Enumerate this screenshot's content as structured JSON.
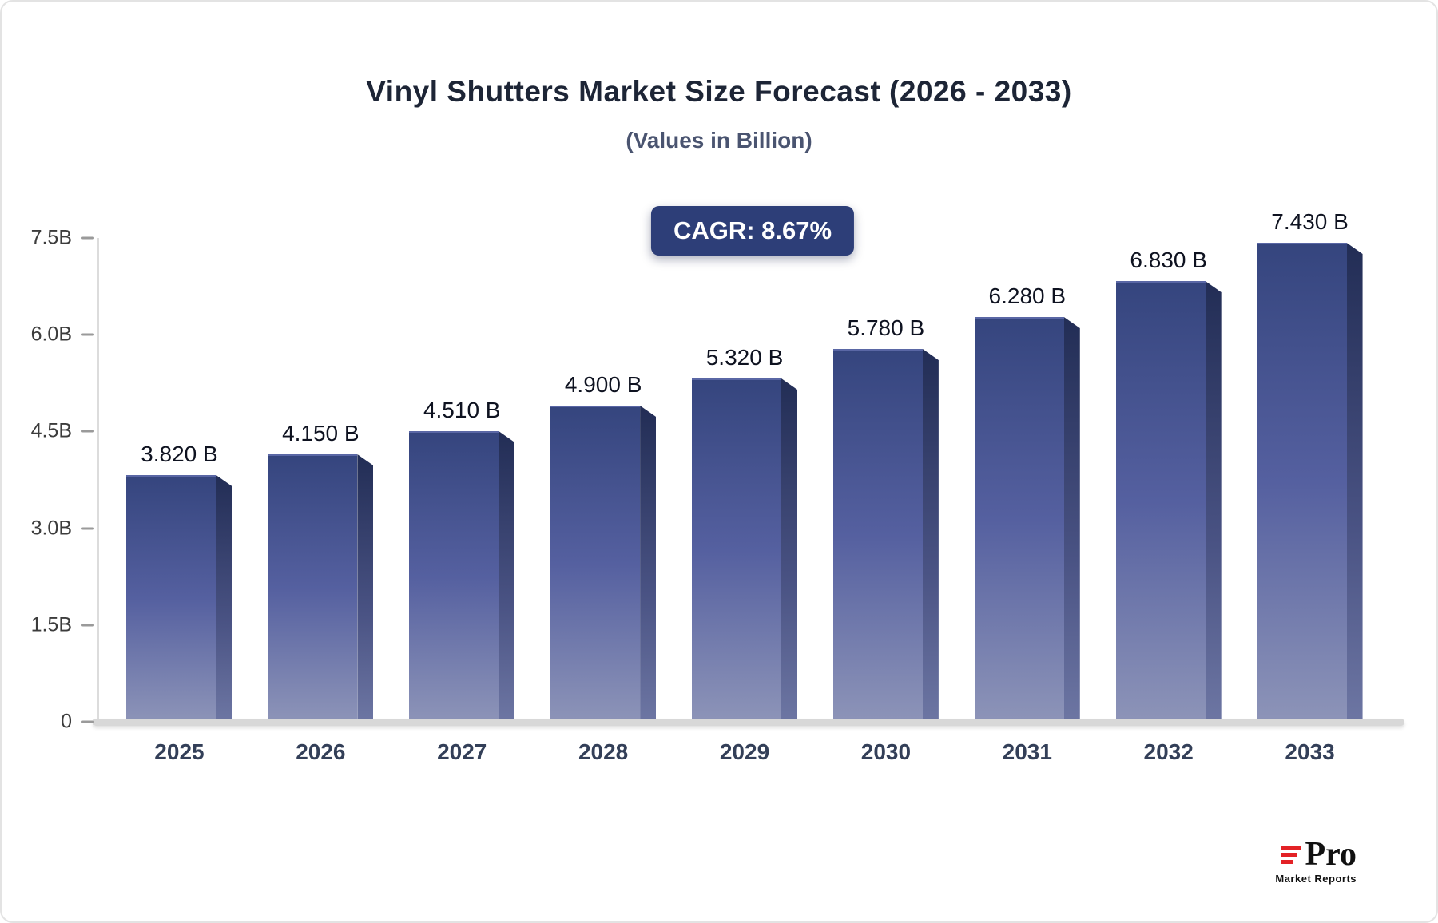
{
  "page": {
    "title": "Vinyl Shutters Market Size Forecast (2026 - 2033)",
    "subtitle": "(Values in Billion)",
    "cagr_badge": "CAGR: 8.67%"
  },
  "chart_data": {
    "type": "bar",
    "title": "Vinyl Shutters Market Size Forecast (2026 - 2033)",
    "subtitle": "(Values in Billion)",
    "cagr": "8.67%",
    "categories": [
      "2025",
      "2026",
      "2027",
      "2028",
      "2029",
      "2030",
      "2031",
      "2032",
      "2033"
    ],
    "values": [
      3.82,
      4.15,
      4.51,
      4.9,
      5.32,
      5.78,
      6.28,
      6.83,
      7.43
    ],
    "value_labels": [
      "3.820 B",
      "4.150 B",
      "4.510 B",
      "4.900 B",
      "5.320 B",
      "5.780 B",
      "6.280 B",
      "6.830 B",
      "7.430 B"
    ],
    "xlabel": "",
    "ylabel": "",
    "ylim": [
      0,
      7.5
    ],
    "yticks": [
      0,
      1.5,
      3.0,
      4.5,
      6.0,
      7.5
    ],
    "ytick_labels": [
      "0",
      "1.5B",
      "3.0B",
      "4.5B",
      "6.0B",
      "7.5B"
    ],
    "grid": false,
    "legend": false,
    "bar_colors": {
      "face_top": "#35457e",
      "face_bottom": "#8d94b8",
      "side": "#222d55"
    }
  },
  "logo": {
    "title": "Pro",
    "subtitle": "Market Reports",
    "accent_color": "#e32226"
  }
}
